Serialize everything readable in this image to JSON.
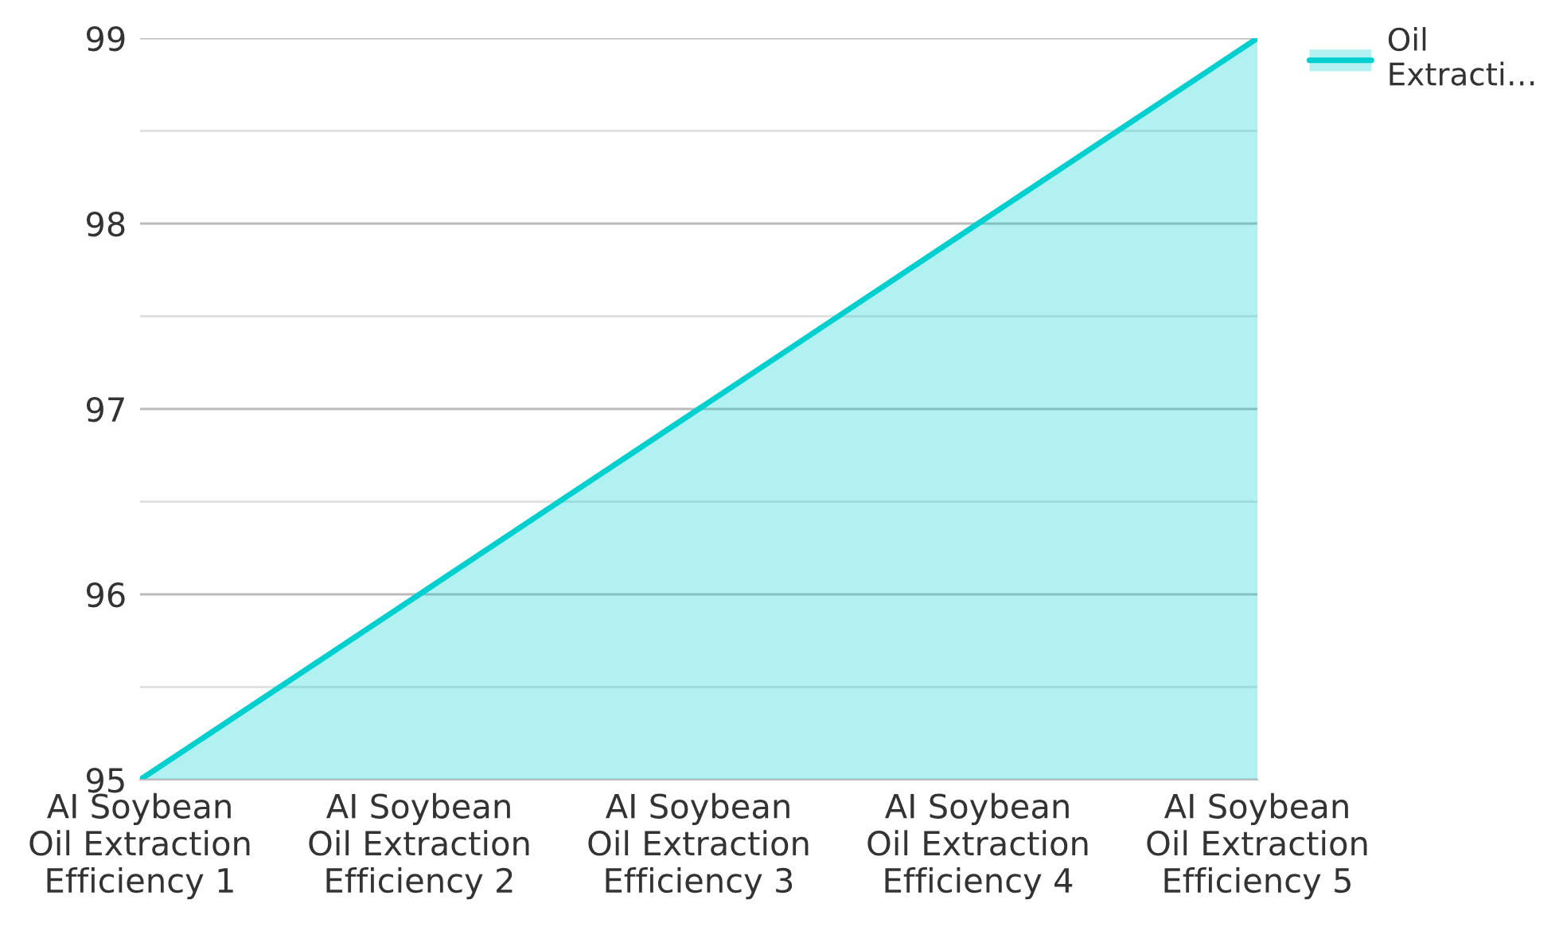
{
  "chart_data": {
    "type": "area",
    "categories": [
      "AI Soybean\nOil Extraction\nEfficiency 1",
      "AI Soybean\nOil Extraction\nEfficiency 2",
      "AI Soybean\nOil Extraction\nEfficiency 3",
      "AI Soybean\nOil Extraction\nEfficiency 4",
      "AI Soybean\nOil Extraction\nEfficiency 5"
    ],
    "series": [
      {
        "name": "Oil Extracti…",
        "color": "#00cfcf",
        "values": [
          95,
          96,
          97,
          98,
          99
        ]
      }
    ],
    "ylim": [
      95,
      99
    ],
    "yticks": [
      95,
      {
        "value": 95.5,
        "label": null
      },
      96,
      {
        "value": 96.5,
        "label": null
      },
      97,
      {
        "value": 97.5,
        "label": null
      },
      98,
      {
        "value": 98.5,
        "label": null
      },
      99
    ],
    "grid": "y",
    "legend": "top right"
  }
}
